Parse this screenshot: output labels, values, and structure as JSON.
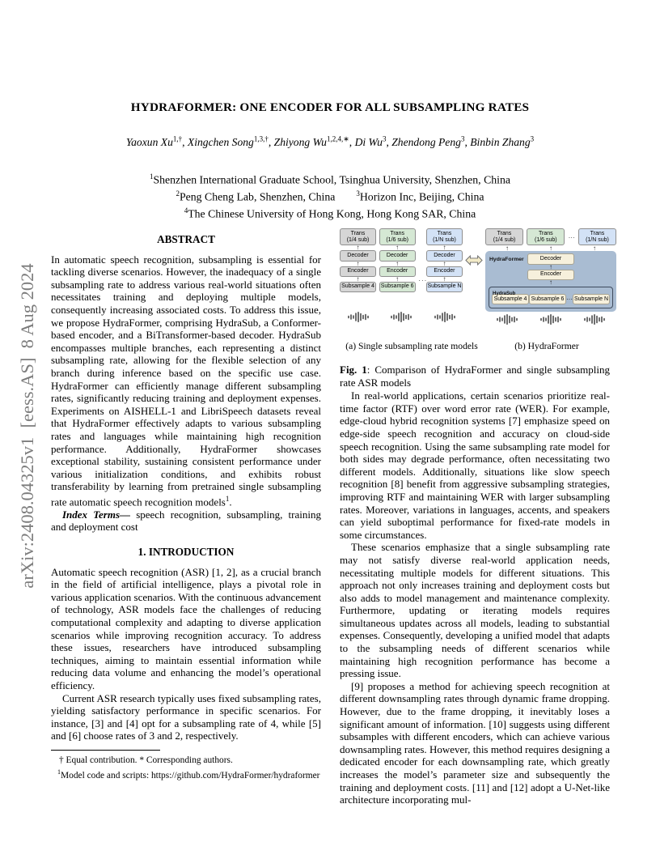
{
  "theme": {
    "gray": "#d6d6d6",
    "green": "#d5e8d4",
    "blue": "#d3e2f6",
    "slate": "#a9bcd2",
    "cream": "#f6f0dc"
  },
  "arxiv_sidebar": "arXiv:2408.04325v1  [eess.AS]  8 Aug 2024",
  "title": "HYDRAFORMER: ONE ENCODER FOR ALL SUBSAMPLING RATES",
  "authors": [
    {
      "name": "Yaoxun Xu",
      "sup": "1,†",
      "trail": ", "
    },
    {
      "name": "Xingchen Song",
      "sup": "1,3,†",
      "trail": ", "
    },
    {
      "name": "Zhiyong Wu",
      "sup": "1,2,4,∗",
      "trail": ", "
    },
    {
      "name": "Di Wu",
      "sup": "3",
      "trail": ", "
    },
    {
      "name": "Zhendong Peng",
      "sup": "3",
      "trail": ", "
    },
    {
      "name": "Binbin Zhang",
      "sup": "3",
      "trail": ""
    }
  ],
  "affiliations": {
    "line1": {
      "sup": "1",
      "text": "Shenzhen International Graduate School, Tsinghua University, Shenzhen, China"
    },
    "line2a": {
      "sup": "2",
      "text": "Peng Cheng Lab, Shenzhen, China"
    },
    "line2b": {
      "sup": "3",
      "text": "Horizon Inc, Beijing, China"
    },
    "line3": {
      "sup": "4",
      "text": "The Chinese University of Hong Kong, Hong Kong SAR, China"
    }
  },
  "abstract": {
    "heading": "ABSTRACT",
    "text": "In automatic speech recognition, subsampling is essential for tackling diverse scenarios. However, the inadequacy of a single subsampling rate to address various real-world situations often necessitates training and deploying multiple models, consequently increasing associated costs. To address this issue, we propose HydraFormer, comprising HydraSub, a Conformer-based encoder, and a BiTransformer-based decoder. HydraSub encompasses multiple branches, each representing a distinct subsampling rate, allowing for the flexible selection of any branch during inference based on the specific use case. HydraFormer can efficiently manage different subsampling rates, significantly reducing training and deployment expenses. Experiments on AISHELL-1 and LibriSpeech datasets reveal that HydraFormer effectively adapts to various subsampling rates and languages while maintaining high recognition performance. Additionally, HydraFormer showcases exceptional stability, sustaining consistent performance under various initialization conditions, and exhibits robust transferability by learning from pretrained single subsampling rate automatic speech recognition models",
    "sup": "1",
    "text_end": "."
  },
  "index_terms": {
    "label": "Index Terms—",
    "text": " speech recognition, subsampling, training and deployment cost"
  },
  "introduction": {
    "heading": "1.  INTRODUCTION",
    "p1": "Automatic speech recognition (ASR) [1, 2], as a crucial branch in the field of artificial intelligence, plays a pivotal role in various application scenarios. With the continuous advancement of technology, ASR models face the challenges of reducing computational complexity and adapting to diverse application scenarios while improving recognition accuracy. To address these issues, researchers have introduced subsampling techniques, aiming to maintain essential information while reducing data volume and enhancing the model’s operational efficiency.",
    "p2": "Current ASR research typically uses fixed subsampling rates, yielding satisfactory performance in specific scenarios. For instance, [3] and [4] opt for a subsampling rate of 4, while [5] and [6] choose rates of 3 and 2, respectively."
  },
  "footnotes": {
    "line1": "† Equal contribution. * Corresponding authors.",
    "line2_sup": "1",
    "line2_text": "Model code and scripts: ",
    "code_url": "https://github.com/HydraFormer/hydraformer"
  },
  "figure": {
    "trans": [
      {
        "l1": "Trans",
        "l2": "(1/4 sub)"
      },
      {
        "l1": "Trans",
        "l2": "(1/6 sub)"
      },
      {
        "l1": "Trans",
        "l2": "(1/N sub)"
      }
    ],
    "decoder": "Decoder",
    "encoder": "Encoder",
    "subsamples": [
      "Subsample 4",
      "Subsample 6",
      "Subsample N"
    ],
    "dots": "···",
    "b_title": "HydraFormer",
    "hydrasub_title": "HydraSub",
    "caption_a": "(a) Single subsampling rate models",
    "caption_b": "(b) HydraFormer"
  },
  "fig_caption": {
    "label": "Fig. 1",
    "text": ": Comparison of HydraFormer and single subsampling rate ASR models"
  },
  "right_column": {
    "p1": "In real-world applications, certain scenarios prioritize real-time factor (RTF) over word error rate (WER). For example, edge-cloud hybrid recognition systems [7] emphasize speed on edge-side speech recognition and accuracy on cloud-side speech recognition. Using the same subsampling rate model for both sides may degrade performance, often necessitating two different models. Additionally, situations like slow speech recognition [8] benefit from aggressive subsampling strategies, improving RTF and maintaining WER with larger subsampling rates. Moreover, variations in languages, accents, and speakers can yield suboptimal performance for fixed-rate models in some circumstances.",
    "p2": "These scenarios emphasize that a single subsampling rate may not satisfy diverse real-world application needs, necessitating multiple models for different situations. This approach not only increases training and deployment costs but also adds to model management and maintenance complexity. Furthermore, updating or iterating models requires simultaneous updates across all models, leading to substantial expenses. Consequently, developing a unified model that adapts to the subsampling needs of different scenarios while maintaining high recognition performance has become a pressing issue.",
    "p3": "[9] proposes a method for achieving speech recognition at different downsampling rates through dynamic frame dropping. However, due to the frame dropping, it inevitably loses a significant amount of information. [10] suggests using different subsamples with different encoders, which can achieve various downsampling rates. However, this method requires designing a dedicated encoder for each downsampling rate, which greatly increases the model’s parameter size and subsequently the training and deployment costs. [11] and [12] adopt a U-Net-like architecture incorporating mul-"
  }
}
